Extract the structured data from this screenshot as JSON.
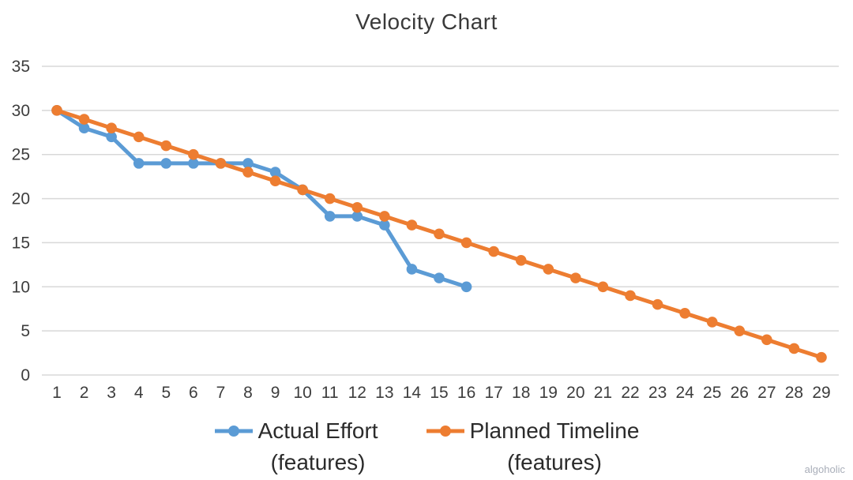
{
  "title": "Velocity Chart",
  "watermark": "algoholic",
  "chart_data": {
    "type": "line",
    "title": "Velocity Chart",
    "x": [
      1,
      2,
      3,
      4,
      5,
      6,
      7,
      8,
      9,
      10,
      11,
      12,
      13,
      14,
      15,
      16,
      17,
      18,
      19,
      20,
      21,
      22,
      23,
      24,
      25,
      26,
      27,
      28,
      29
    ],
    "series": [
      {
        "name": "Actual Effort (features)",
        "legend_line1": "Actual Effort",
        "legend_line2": "(features)",
        "color": "#5B9BD5",
        "values": [
          30,
          28,
          27,
          24,
          24,
          24,
          24,
          24,
          23,
          21,
          18,
          18,
          17,
          12,
          11,
          10
        ]
      },
      {
        "name": "Planned Timeline (features)",
        "legend_line1": "Planned Timeline",
        "legend_line2": "(features)",
        "color": "#ED7D31",
        "values": [
          30,
          29,
          28,
          27,
          26,
          25,
          24,
          23,
          22,
          21,
          20,
          19,
          18,
          17,
          16,
          15,
          14,
          13,
          12,
          11,
          10,
          9,
          8,
          7,
          6,
          5,
          4,
          3,
          2
        ]
      }
    ],
    "xlabel": "",
    "ylabel": "",
    "ylim": [
      0,
      35
    ],
    "ytick_step": 5,
    "grid": "horizontal",
    "gridline_color": "#d8d8d8",
    "axis_label_color": "#3d3d3d",
    "legend_position": "bottom"
  }
}
